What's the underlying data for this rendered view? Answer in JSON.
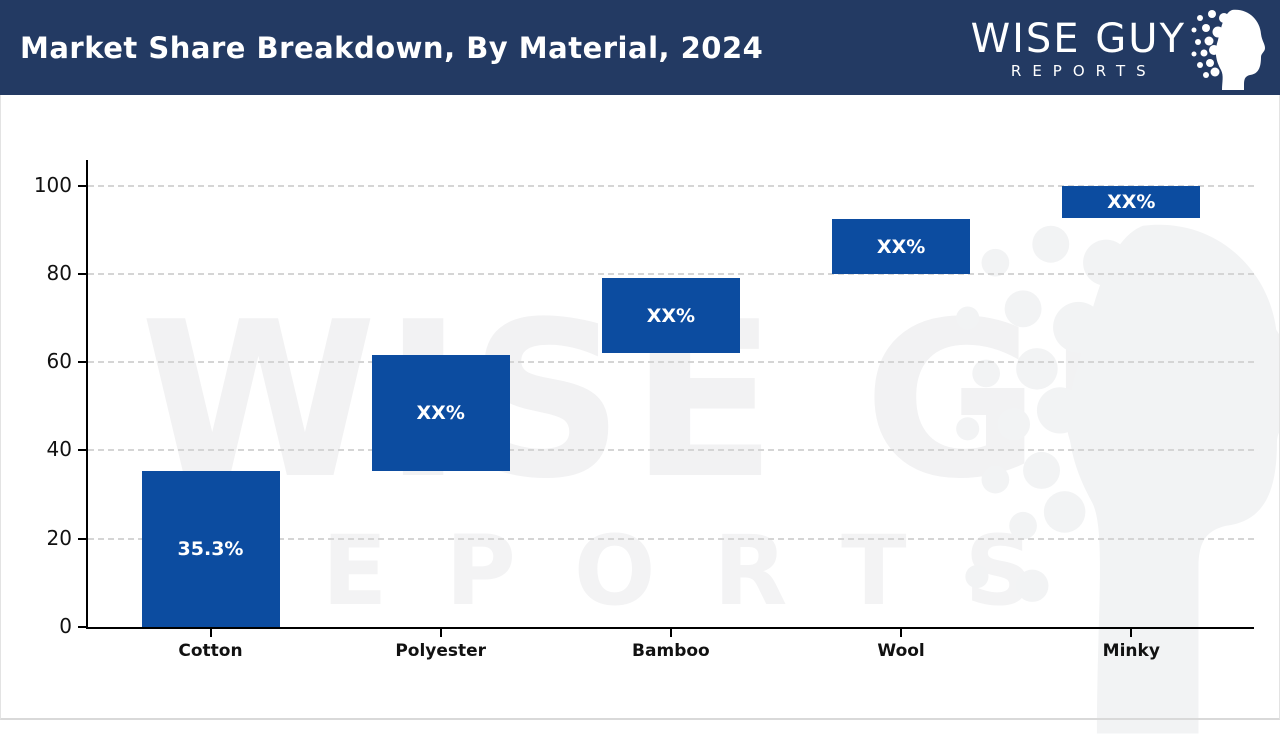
{
  "header": {
    "title": "Market Share Breakdown, By Material, 2024",
    "bg_color": "#233A63",
    "logo": {
      "line1": "WISE GUY",
      "line2": "REPORTS"
    }
  },
  "watermark": {
    "line1": "WISE GUY",
    "line2": "REPORTS"
  },
  "chart_data": {
    "type": "bar",
    "variant": "waterfall",
    "title": "Market Share Breakdown, By Material, 2024",
    "categories": [
      "Cotton",
      "Polyester",
      "Bamboo",
      "Wool",
      "Minky"
    ],
    "bars": [
      {
        "category": "Cotton",
        "start": 0,
        "end": 35.3,
        "label": "35.3%"
      },
      {
        "category": "Polyester",
        "start": 35.3,
        "end": 61.6,
        "label": "XX%"
      },
      {
        "category": "Bamboo",
        "start": 62,
        "end": 79,
        "label": "XX%"
      },
      {
        "category": "Wool",
        "start": 80,
        "end": 92.3,
        "label": "XX%"
      },
      {
        "category": "Minky",
        "start": 92.7,
        "end": 100,
        "label": "XX%"
      }
    ],
    "xlabel": "",
    "ylabel": "",
    "yticks": [
      0,
      20,
      40,
      60,
      80,
      100
    ],
    "ylim": [
      0,
      105.8
    ],
    "bar_color": "#0C4CA0",
    "bar_label_color": "#ffffff",
    "grid": {
      "horizontal": true,
      "style": "dashed",
      "color": "#d5d5d5"
    },
    "legend": null
  }
}
